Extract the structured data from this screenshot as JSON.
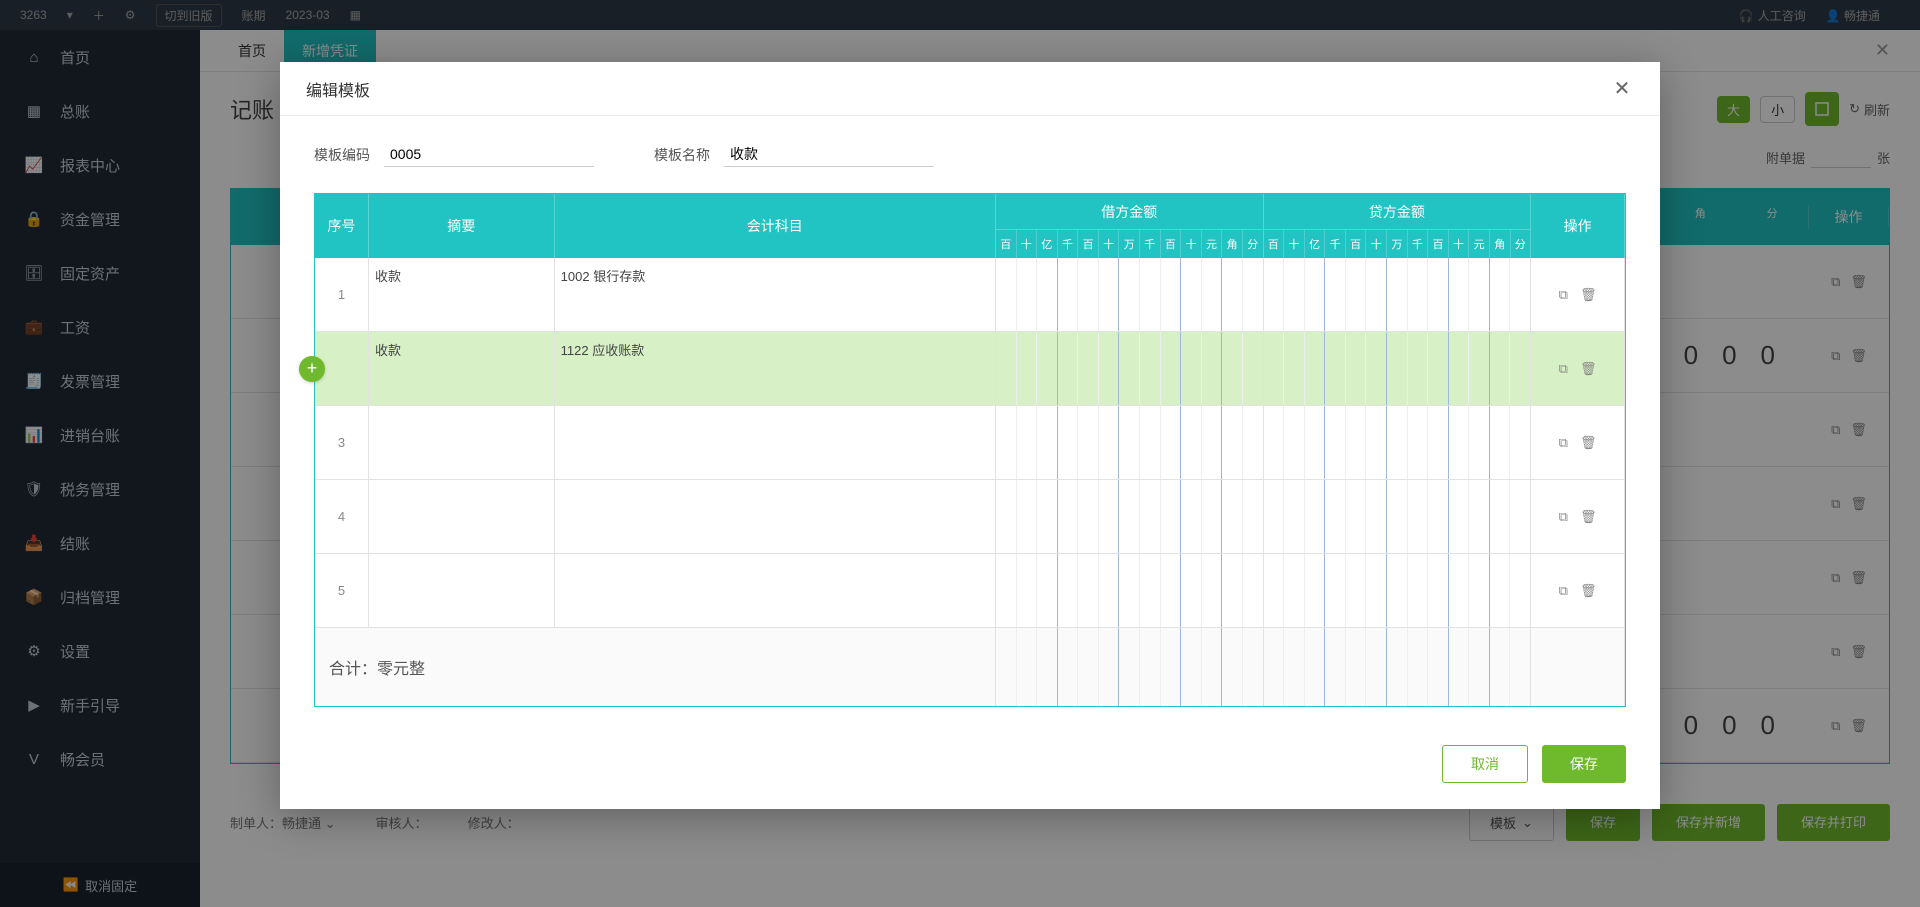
{
  "topbar": {
    "org": "3263",
    "switch": "切到旧版",
    "period_label": "账期",
    "period": "2023-03",
    "support": "人工咨询",
    "user": "畅捷通"
  },
  "sidebar": {
    "items": [
      {
        "icon": "home",
        "label": "首页"
      },
      {
        "icon": "ledger",
        "label": "总账"
      },
      {
        "icon": "report",
        "label": "报表中心"
      },
      {
        "icon": "fund",
        "label": "资金管理"
      },
      {
        "icon": "asset",
        "label": "固定资产"
      },
      {
        "icon": "salary",
        "label": "工资"
      },
      {
        "icon": "invoice",
        "label": "发票管理"
      },
      {
        "icon": "stock",
        "label": "进销台账"
      },
      {
        "icon": "tax",
        "label": "税务管理"
      },
      {
        "icon": "close",
        "label": "结账"
      },
      {
        "icon": "archive",
        "label": "归档管理"
      },
      {
        "icon": "settings",
        "label": "设置"
      },
      {
        "icon": "guide",
        "label": "新手引导"
      },
      {
        "icon": "vip",
        "label": "畅会员"
      }
    ],
    "footer": "取消固定"
  },
  "tabs": {
    "home": "首页",
    "active": "新增凭证"
  },
  "page": {
    "title": "记账",
    "size_big": "大",
    "size_small": "小",
    "refresh": "刷新",
    "attach_label": "附单据",
    "attach_unit": "张"
  },
  "bg_table": {
    "op_header": "操作",
    "digits": "百十元角分",
    "rows_amount": [
      "",
      "50000",
      "",
      "",
      "",
      "",
      "50000"
    ],
    "footer": {
      "maker_label": "制单人：",
      "maker": "畅捷通",
      "auditor_label": "审核人：",
      "modifier_label": "修改人：",
      "btn_template": "模板",
      "btn_save": "保存",
      "btn_save_new": "保存并新增",
      "btn_save_print": "保存并打印"
    }
  },
  "modal": {
    "title": "编辑模板",
    "code_label": "模板编码",
    "code_value": "0005",
    "name_label": "模板名称",
    "name_value": "收款",
    "headers": {
      "seq": "序号",
      "summary": "摘要",
      "account": "会计科目",
      "debit": "借方金额",
      "credit": "贷方金额",
      "ops": "操作"
    },
    "units": [
      "百",
      "十",
      "亿",
      "千",
      "百",
      "十",
      "万",
      "千",
      "百",
      "十",
      "元",
      "角",
      "分"
    ],
    "rows": [
      {
        "seq": "1",
        "summary": "收款",
        "account": "1002 银行存款"
      },
      {
        "seq": "",
        "summary": "收款",
        "account": "1122 应收账款",
        "hover": true
      },
      {
        "seq": "3",
        "summary": "",
        "account": ""
      },
      {
        "seq": "4",
        "summary": "",
        "account": ""
      },
      {
        "seq": "5",
        "summary": "",
        "account": ""
      }
    ],
    "total": "合计：零元整",
    "cancel": "取消",
    "save": "保存"
  }
}
